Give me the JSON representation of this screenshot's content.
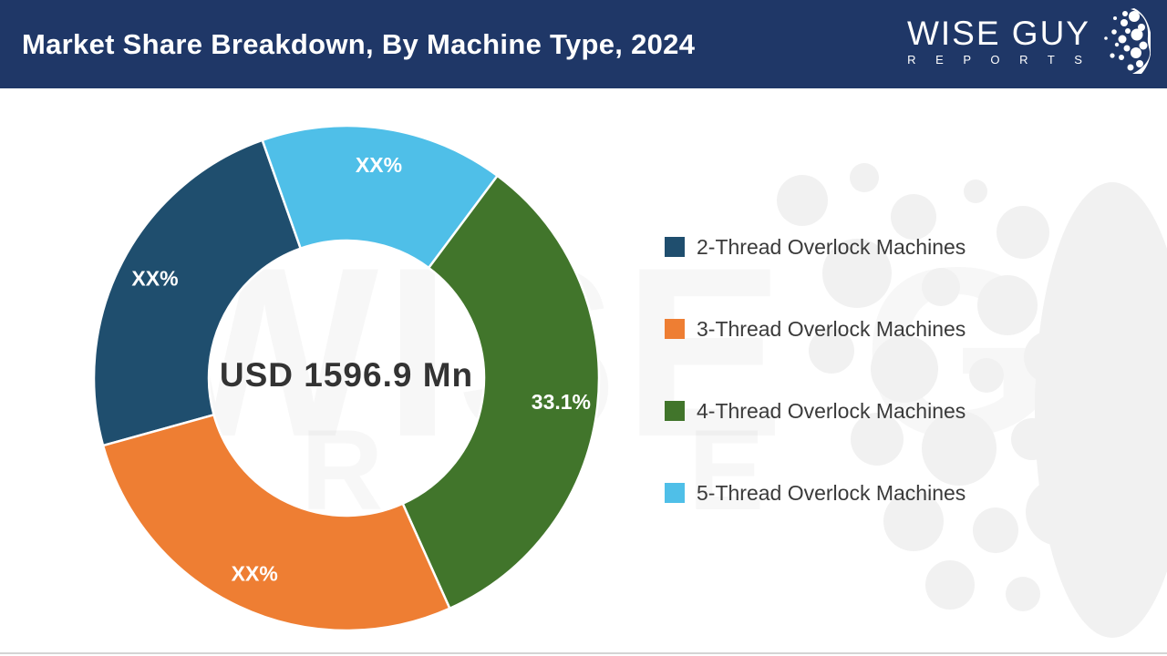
{
  "header": {
    "title": "Market Share Breakdown, By Machine Type, 2024",
    "bg_color": "#1F3767",
    "logo": {
      "line1": "WISE GUY",
      "line2": "R E P O R T S"
    }
  },
  "chart_data": {
    "type": "pie",
    "subtype": "donut",
    "title": "Market Share Breakdown, By Machine Type, 2024",
    "center_label": "USD 1596.9 Mn",
    "segments": [
      {
        "label": "2-Thread Overlock Machines",
        "value_pct": 23.9,
        "display_label": "XX%",
        "color": "#1F4E6E"
      },
      {
        "label": "3-Thread Overlock Machines",
        "value_pct": 27.4,
        "display_label": "XX%",
        "color": "#EE7E33"
      },
      {
        "label": "4-Thread Overlock Machines",
        "value_pct": 33.1,
        "display_label": "33.1%",
        "color": "#41752B"
      },
      {
        "label": "5-Thread Overlock Machines",
        "value_pct": 15.6,
        "display_label": "XX%",
        "color": "#4FBFE8"
      }
    ],
    "legend_position": "right",
    "label_text_color": "#ffffff",
    "layout": {
      "start_angle_deg": 254.5,
      "draw_order": [
        0,
        3,
        2,
        1
      ],
      "outer_radius": 277,
      "inner_radius_ratio": 0.545,
      "label_radius_ratio": 0.855
    }
  },
  "watermark": {
    "line1": "WISE GU",
    "line2": "R E P O R T"
  }
}
